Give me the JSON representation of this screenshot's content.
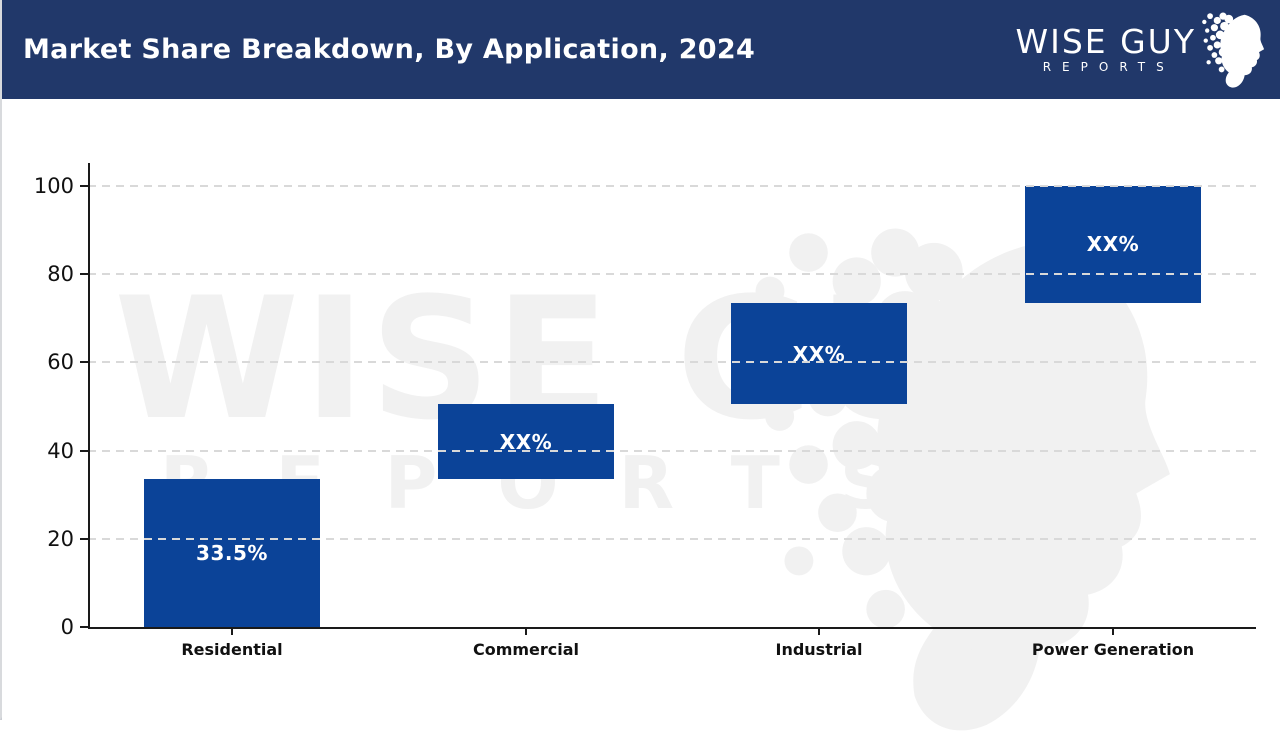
{
  "header": {
    "title": "Market Share Breakdown, By Application, 2024",
    "logo": {
      "wordmark": "WISE GUY",
      "subtitle": "REPORTS"
    }
  },
  "watermark": {
    "wordmark": "WISE GUY",
    "subtitle": "REPORTS"
  },
  "chart_data": {
    "type": "bar",
    "subtype": "floating-segment-waterfall",
    "title": "Market Share Breakdown, By Application, 2024",
    "categories": [
      "Residential",
      "Commercial",
      "Industrial",
      "Power Generation"
    ],
    "segments": [
      {
        "category": "Residential",
        "from": 0,
        "to": 33.5,
        "label": "33.5%"
      },
      {
        "category": "Commercial",
        "from": 33.5,
        "to": 50.5,
        "label": "XX%"
      },
      {
        "category": "Industrial",
        "from": 50.5,
        "to": 73.5,
        "label": "XX%"
      },
      {
        "category": "Power Generation",
        "from": 73.5,
        "to": 100,
        "label": "XX%"
      }
    ],
    "xlabel": "",
    "ylabel": "",
    "ylim": [
      0,
      100
    ],
    "yticks": [
      0,
      20,
      40,
      60,
      80,
      100
    ],
    "grid": {
      "horizontal": true,
      "style": "dashed",
      "color": "#d9d9d9",
      "drawn_above_bars": true
    },
    "legend": null,
    "bar_color": "#0b4398",
    "bar_label_color": "#ffffff",
    "axis_color": "#1a1a1a",
    "header_color": "#21386a",
    "watermark_color": "#f1f1f1"
  }
}
